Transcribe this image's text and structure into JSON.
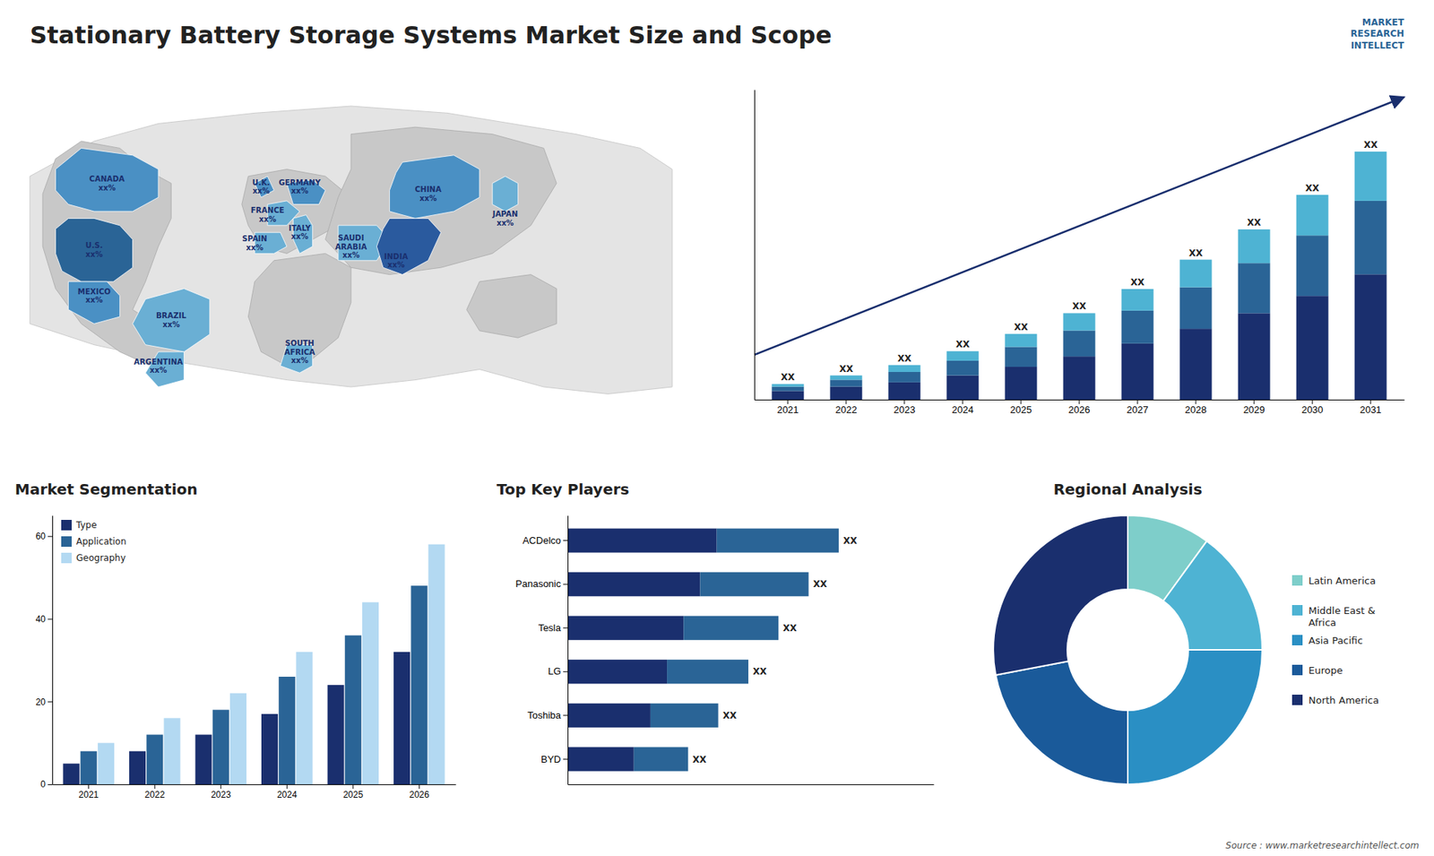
{
  "chart_data": [
    {
      "type": "map",
      "title": "Stationary Battery Storage Systems Market Size and Scope",
      "categories": [
        "U.S.\nxx%",
        "CANADA\nxx%",
        "MEXICO\nxx%",
        "BRAZIL\nxx%",
        "ARGENTINA\nxx%",
        "U.K.\nxx%",
        "FRANCE\nxx%",
        "SPAIN\nxx%",
        "GERMANY\nxx%",
        "ITALY\nxx%",
        "SAUDI\nARABIA\nxx%",
        "SOUTH\nAFRICA\nxx%",
        "CHINA\nxx%",
        "JAPAN\nxx%",
        "INDIA\nxx%"
      ],
      "colors": [
        "#2a6496",
        "#4a90c4",
        "#4a90c4",
        "#6aafd4",
        "#6aafd4",
        "#4a90c4",
        "#6aafd4",
        "#6aafd4",
        "#4a90c4",
        "#6aafd4",
        "#6aafd4",
        "#6aafd4",
        "#4a90c4",
        "#6aafd4",
        "#2a5a9e"
      ],
      "annotations": [
        "MARKET\nRESEARCH\nINTELLECT",
        "Source : www.marketresearchintellect.com"
      ]
    },
    {
      "type": "bar",
      "stacked": true,
      "categories": [
        "2021",
        "2022",
        "2023",
        "2024",
        "2025",
        "2026",
        "2027",
        "2028",
        "2029",
        "2030",
        "2031"
      ],
      "series": [
        {
          "color": "#1a2f6e",
          "values": [
            1,
            1.5,
            2,
            2.8,
            3.8,
            5,
            6.5,
            8.2,
            10,
            12,
            14.5
          ]
        },
        {
          "color": "#2a6496",
          "values": [
            0.5,
            0.8,
            1.2,
            1.7,
            2.3,
            3.0,
            3.8,
            4.8,
            5.8,
            7.0,
            8.5
          ]
        },
        {
          "color": "#4eb3d3",
          "values": [
            0.3,
            0.5,
            0.8,
            1.1,
            1.5,
            2.0,
            2.5,
            3.2,
            3.9,
            4.7,
            5.7
          ]
        }
      ],
      "ylim": [
        0,
        35.875
      ],
      "yticks": [],
      "tick_labels": "x",
      "annotations": [
        "XX",
        "XX",
        "XX",
        "XX",
        "XX",
        "XX",
        "XX",
        "XX",
        "XX",
        "XX",
        "XX"
      ]
    },
    {
      "type": "bar",
      "title": "Market Segmentation",
      "categories": [
        "2021",
        "2022",
        "2023",
        "2024",
        "2025",
        "2026"
      ],
      "series": [
        {
          "name": "Type",
          "color": "#1a2f6e",
          "values": [
            5,
            8,
            12,
            17,
            24,
            32
          ]
        },
        {
          "name": "Application",
          "color": "#2a6496",
          "values": [
            8,
            12,
            18,
            26,
            36,
            48
          ]
        },
        {
          "name": "Geography",
          "color": "#b3d9f2",
          "values": [
            10,
            16,
            22,
            32,
            44,
            58
          ]
        }
      ],
      "ylim": [
        0,
        65
      ],
      "yticks": [
        0,
        20,
        40,
        60
      ],
      "legend": "upper left"
    },
    {
      "type": "bar",
      "orientation": "horizontal",
      "stacked": true,
      "title": "Top Key Players",
      "categories": [
        "ACDelco",
        "Panasonic",
        "Tesla",
        "LG",
        "Toshiba",
        "BYD"
      ],
      "series": [
        {
          "color": "#1a2f6e",
          "values": [
            4.95,
            4.4,
            3.85,
            3.3,
            2.75,
            2.2
          ]
        },
        {
          "color": "#2a6496",
          "values": [
            4.05,
            3.6,
            3.15,
            2.7,
            2.25,
            1.8
          ]
        }
      ],
      "xlim": [
        0,
        12.15
      ],
      "xticks": [],
      "tick_labels": "y",
      "annotations": [
        "XX",
        "XX",
        "XX",
        "XX",
        "XX",
        "XX"
      ]
    },
    {
      "type": "pie",
      "title": "Regional Analysis",
      "categories": [
        "Latin America",
        "Middle East &\nAfrica",
        "Asia Pacific",
        "Europe",
        "North America"
      ],
      "values": [
        10,
        15,
        25,
        22,
        28
      ],
      "colors": [
        "#7ececa",
        "#4eb3d3",
        "#2a8fc4",
        "#1a5a9a",
        "#1a2f6e"
      ],
      "legend": "right"
    }
  ]
}
